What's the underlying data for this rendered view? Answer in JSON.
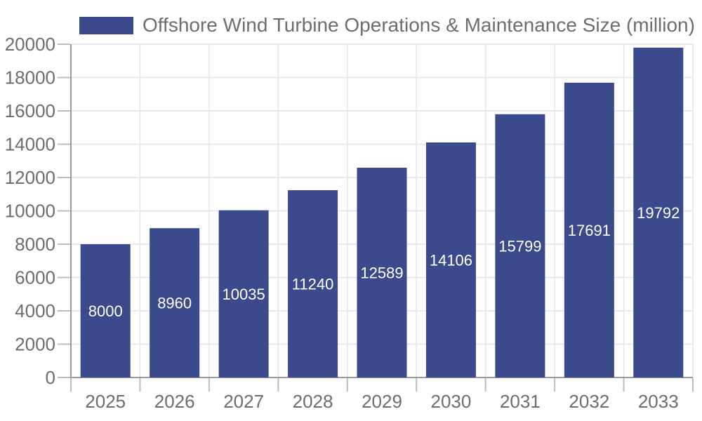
{
  "legend": {
    "series_label": "Offshore Wind Turbine Operations & Maintenance Size (million)"
  },
  "chart_data": {
    "type": "bar",
    "title": "Offshore Wind Turbine Operations & Maintenance Size (million)",
    "series_name": "Offshore Wind Turbine Operations & Maintenance Size (million)",
    "categories": [
      "2025",
      "2026",
      "2027",
      "2028",
      "2029",
      "2030",
      "2031",
      "2032",
      "2033"
    ],
    "values": [
      8000,
      8960,
      10035,
      11240,
      12589,
      14106,
      15799,
      17691,
      19792
    ],
    "value_labels": [
      "8000",
      "8960",
      "10035",
      "11240",
      "12589",
      "14106",
      "15799",
      "17691",
      "19792"
    ],
    "xlabel": "",
    "ylabel": "",
    "ylim": [
      0,
      20000
    ],
    "ytick_step": 2000,
    "ytick_labels": [
      "0",
      "2000",
      "4000",
      "6000",
      "8000",
      "10000",
      "12000",
      "14000",
      "16000",
      "18000",
      "20000"
    ],
    "grid": true,
    "legend_position": "top-left",
    "colors": {
      "bar": "#3A4A8C",
      "value_label": "#ffffff",
      "axis_label": "#6d6d6d",
      "grid": "#e2e2e6",
      "spine": "#999999",
      "tick": "#bcbcbc"
    }
  }
}
